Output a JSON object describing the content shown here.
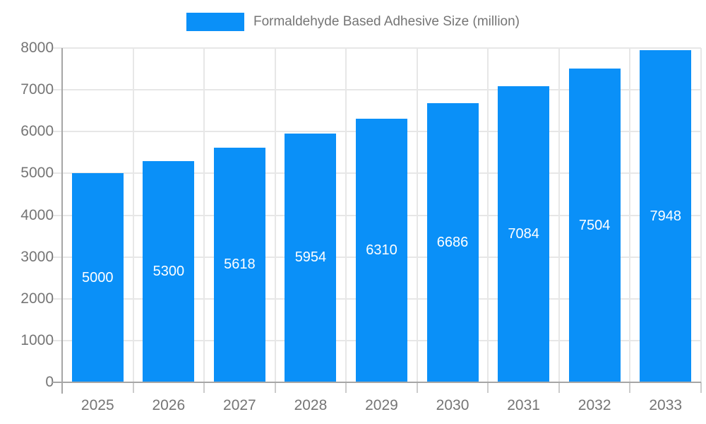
{
  "chart_data": {
    "type": "bar",
    "title": "Formaldehyde Based Adhesive Size (million)",
    "categories": [
      "2025",
      "2026",
      "2027",
      "2028",
      "2029",
      "2030",
      "2031",
      "2032",
      "2033"
    ],
    "series": [
      {
        "name": "Formaldehyde Based Adhesive Size (million)",
        "values": [
          5000,
          5300,
          5618,
          5954,
          6310,
          6686,
          7084,
          7504,
          7948
        ]
      }
    ],
    "values": [
      5000,
      5300,
      5618,
      5954,
      6310,
      6686,
      7084,
      7504,
      7948
    ],
    "value_labels": [
      "5000",
      "5300",
      "5618",
      "5954",
      "6310",
      "6686",
      "7084",
      "7504",
      "7948"
    ],
    "xlabel": "",
    "ylabel": "",
    "ylim": [
      0,
      8000
    ],
    "yticks": [
      0,
      1000,
      2000,
      3000,
      4000,
      5000,
      6000,
      7000,
      8000
    ],
    "grid": true,
    "legend_position": "top",
    "bar_value_labels": "centered-inside-white",
    "colors": {
      "bar": "#0a90f8",
      "bar_label": "#ffffff",
      "axis": "#a6a6a6",
      "grid": "#e7e7e7",
      "boundary_tick": "#cccccc",
      "text": "#757575",
      "background": "#ffffff"
    }
  }
}
